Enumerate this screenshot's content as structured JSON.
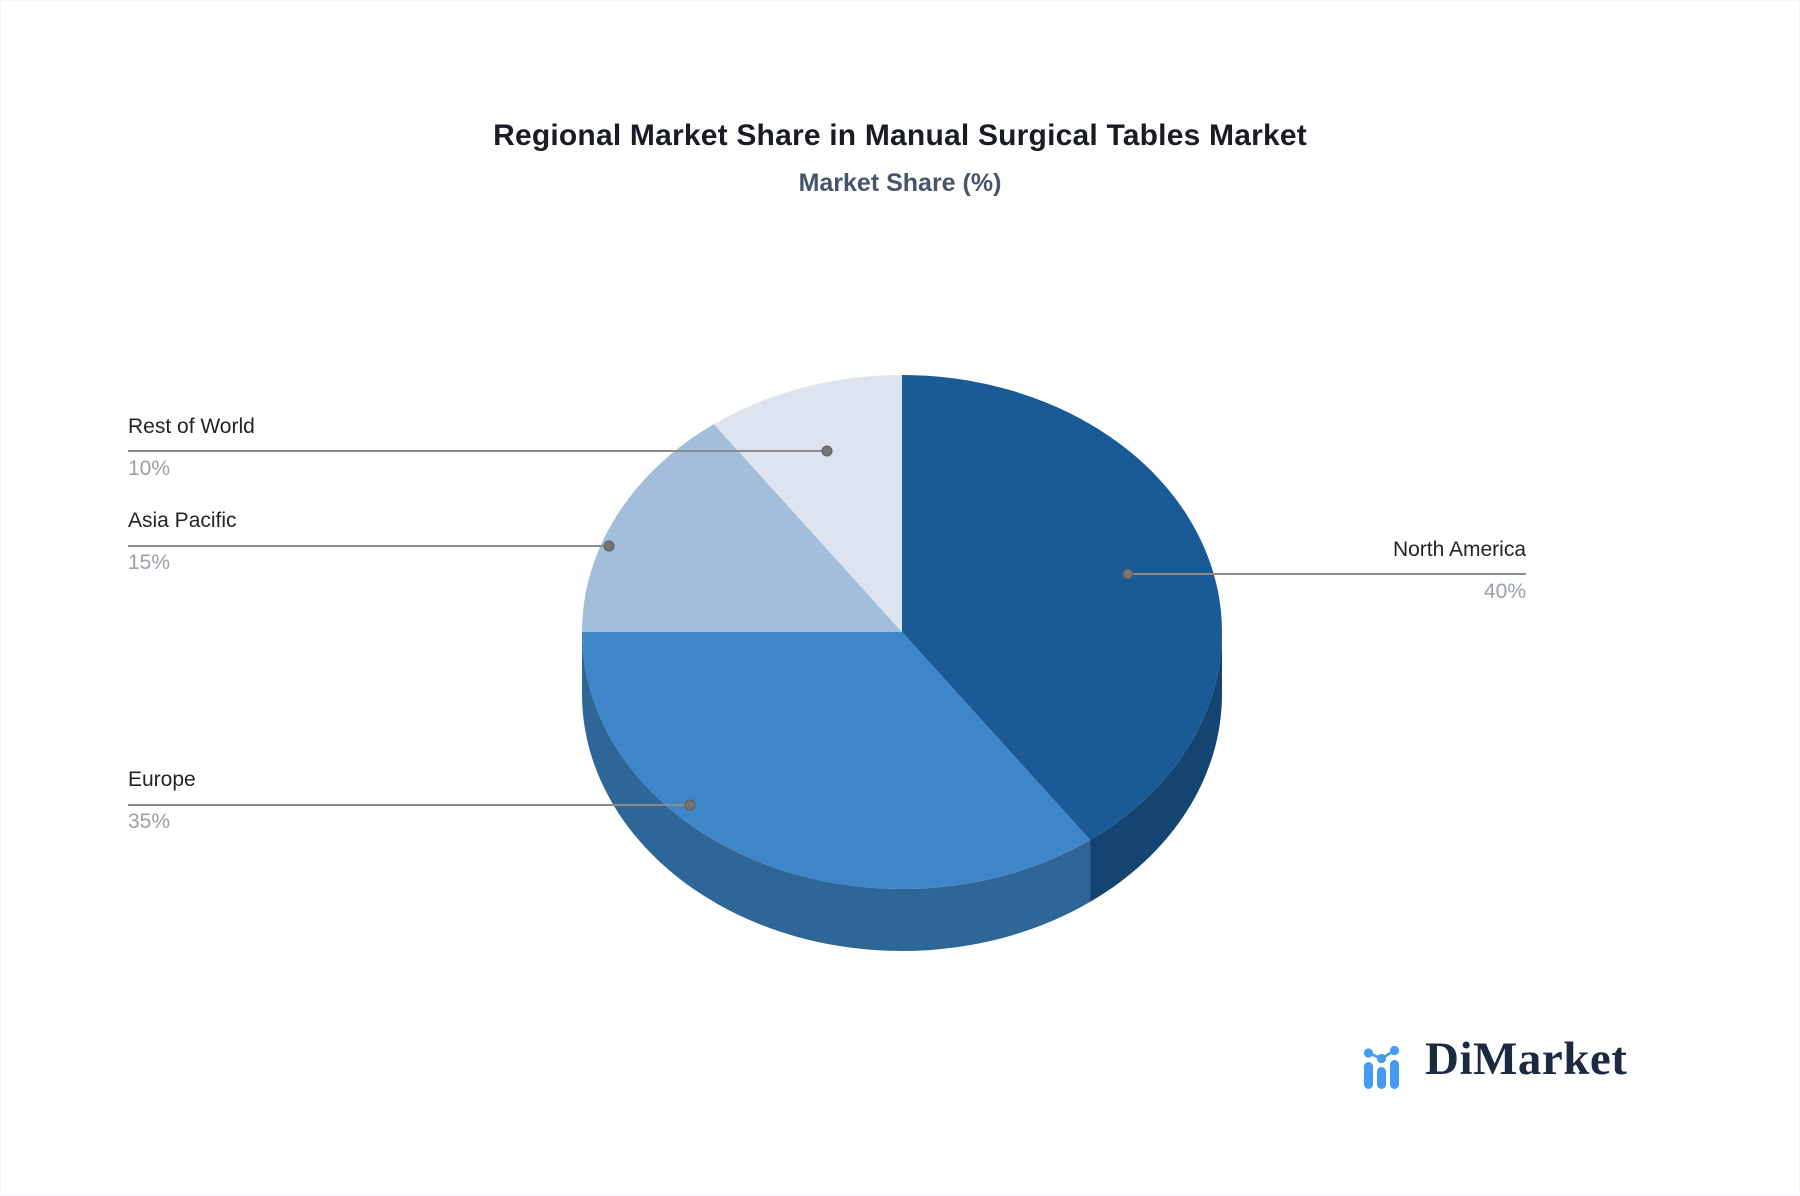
{
  "title": "Regional Market Share in Manual Surgical Tables Market",
  "subtitle": "Market Share (%)",
  "chart_data": {
    "type": "pie",
    "title": "Regional Market Share in Manual Surgical Tables Market",
    "subtitle": "Market Share (%)",
    "unit": "%",
    "categories": [
      "North America",
      "Europe",
      "Asia Pacific",
      "Rest of World"
    ],
    "values": [
      40,
      35,
      15,
      10
    ],
    "colors": [
      "#1a5a96",
      "#3e86c8",
      "#a2bedb",
      "#dee4ef"
    ],
    "start_angle_deg": 0,
    "direction": "clockwise",
    "style": "3d",
    "labels": "outside leader lines",
    "leader_line_color": "#8c8c8c",
    "leader_dot_color": "#757575"
  },
  "slices": [
    {
      "name": "North America",
      "pct": "40%"
    },
    {
      "name": "Europe",
      "pct": "35%"
    },
    {
      "name": "Asia Pacific",
      "pct": "15%"
    },
    {
      "name": "Rest of World",
      "pct": "10%"
    }
  ],
  "logo": {
    "name": "DiMarket",
    "color": "#1b2a41",
    "icon_color": "#459af2",
    "icon": "bar-chart-icon"
  }
}
